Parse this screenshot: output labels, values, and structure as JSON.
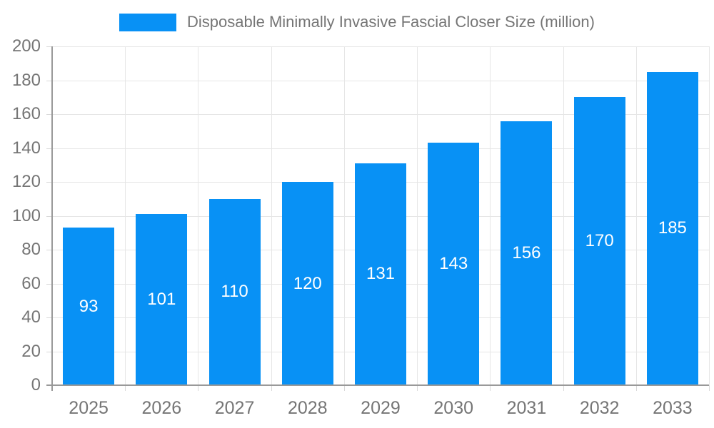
{
  "legend": {
    "position": "top",
    "swatch_color": "#0891f5"
  },
  "chart_data": {
    "type": "bar",
    "title": "Disposable Minimally Invasive Fascial Closer Size (million)",
    "series_name": "Disposable Minimally Invasive Fascial Closer Size (million)",
    "categories": [
      "2025",
      "2026",
      "2027",
      "2028",
      "2029",
      "2030",
      "2031",
      "2032",
      "2033"
    ],
    "values": [
      93,
      101,
      110,
      120,
      131,
      143,
      156,
      170,
      185
    ],
    "xlabel": "",
    "ylabel": "",
    "ylim": [
      0,
      200
    ],
    "ytick_step": 20,
    "ytick_labels": [
      "0",
      "20",
      "40",
      "60",
      "80",
      "100",
      "120",
      "140",
      "160",
      "180",
      "200"
    ],
    "grid": true,
    "legend_position": "top",
    "bar_color": "#0891f5",
    "bar_label_color": "#ffffff",
    "axis_color": "#999999",
    "grid_color": "#e6e6e6",
    "tick_color": "#d9d9d9",
    "text_color": "#757575"
  }
}
